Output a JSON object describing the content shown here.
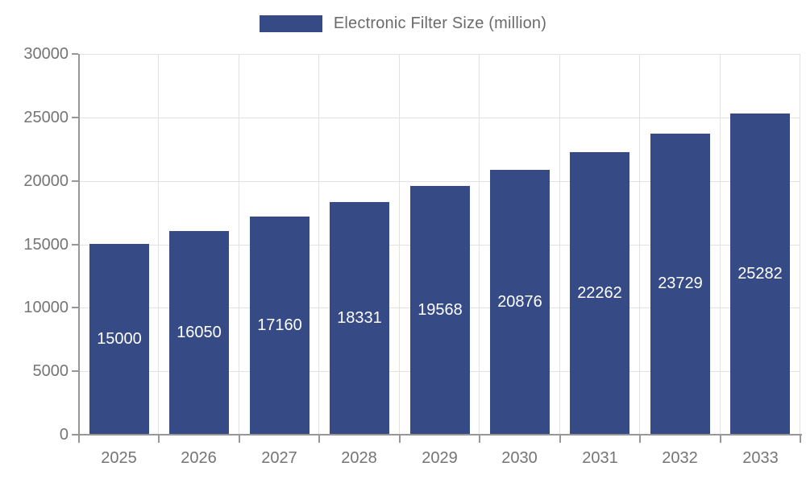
{
  "chart_data": {
    "type": "bar",
    "title": "Electronic Filter Size (million)",
    "categories": [
      "2025",
      "2026",
      "2027",
      "2028",
      "2029",
      "2030",
      "2031",
      "2032",
      "2033"
    ],
    "values": [
      15000,
      16050,
      17160,
      18331,
      19568,
      20876,
      22262,
      23729,
      25282
    ],
    "value_labels": [
      "15000",
      "16050",
      "17160",
      "18331",
      "19568",
      "20876",
      "22262",
      "23729",
      "25282"
    ],
    "xlabel": "",
    "ylabel": "",
    "ylim": [
      0,
      30000
    ],
    "ytick_step": 5000,
    "ytick_labels": [
      "0",
      "5000",
      "10000",
      "15000",
      "20000",
      "25000",
      "30000"
    ],
    "grid": "on",
    "legend_position": "top-center",
    "colors": {
      "bar": "#364B85",
      "bar_label_text": "#ffffff",
      "axis_line": "#979797",
      "tick": "#979797",
      "grid_line": "#e2e2e2",
      "axis_text": "#757575",
      "legend_text": "#6b6b6b"
    }
  }
}
